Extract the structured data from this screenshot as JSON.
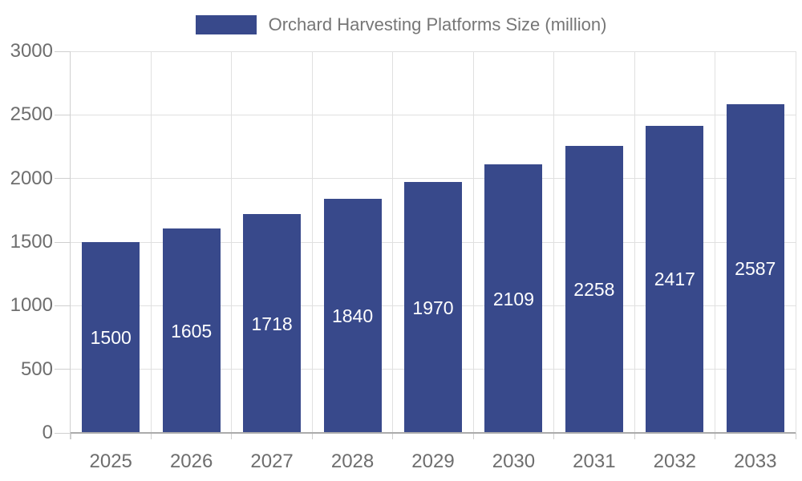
{
  "chart_data": {
    "type": "bar",
    "title": "Orchard Harvesting Platforms Size (million)",
    "categories": [
      "2025",
      "2026",
      "2027",
      "2028",
      "2029",
      "2030",
      "2031",
      "2032",
      "2033"
    ],
    "series": [
      {
        "name": "Orchard Harvesting Platforms Size (million)",
        "values": [
          1500,
          1605,
          1718,
          1840,
          1970,
          2109,
          2258,
          2417,
          2587
        ]
      }
    ],
    "value_labels": [
      "1500",
      "1605",
      "1718",
      "1840",
      "1970",
      "2109",
      "2258",
      "2417",
      "2587"
    ],
    "xlabel": "",
    "ylabel": "",
    "ylim": [
      0,
      3000
    ],
    "yticks": [
      "0",
      "500",
      "1000",
      "1500",
      "2000",
      "2500",
      "3000"
    ],
    "grid": true,
    "legend_position": "top",
    "show_value_labels": true,
    "colors": {
      "bar": "#38498B",
      "value_label": "#FFFFFF",
      "tick_label": "#6E6E6E",
      "legend_text": "#767676",
      "gridline": "#E0E0E0",
      "x_axis_line": "#ABABAB",
      "y_axis_line": "#CFCFCF",
      "tick_mark": "#CFCFCF",
      "background": "#FFFFFF"
    }
  }
}
